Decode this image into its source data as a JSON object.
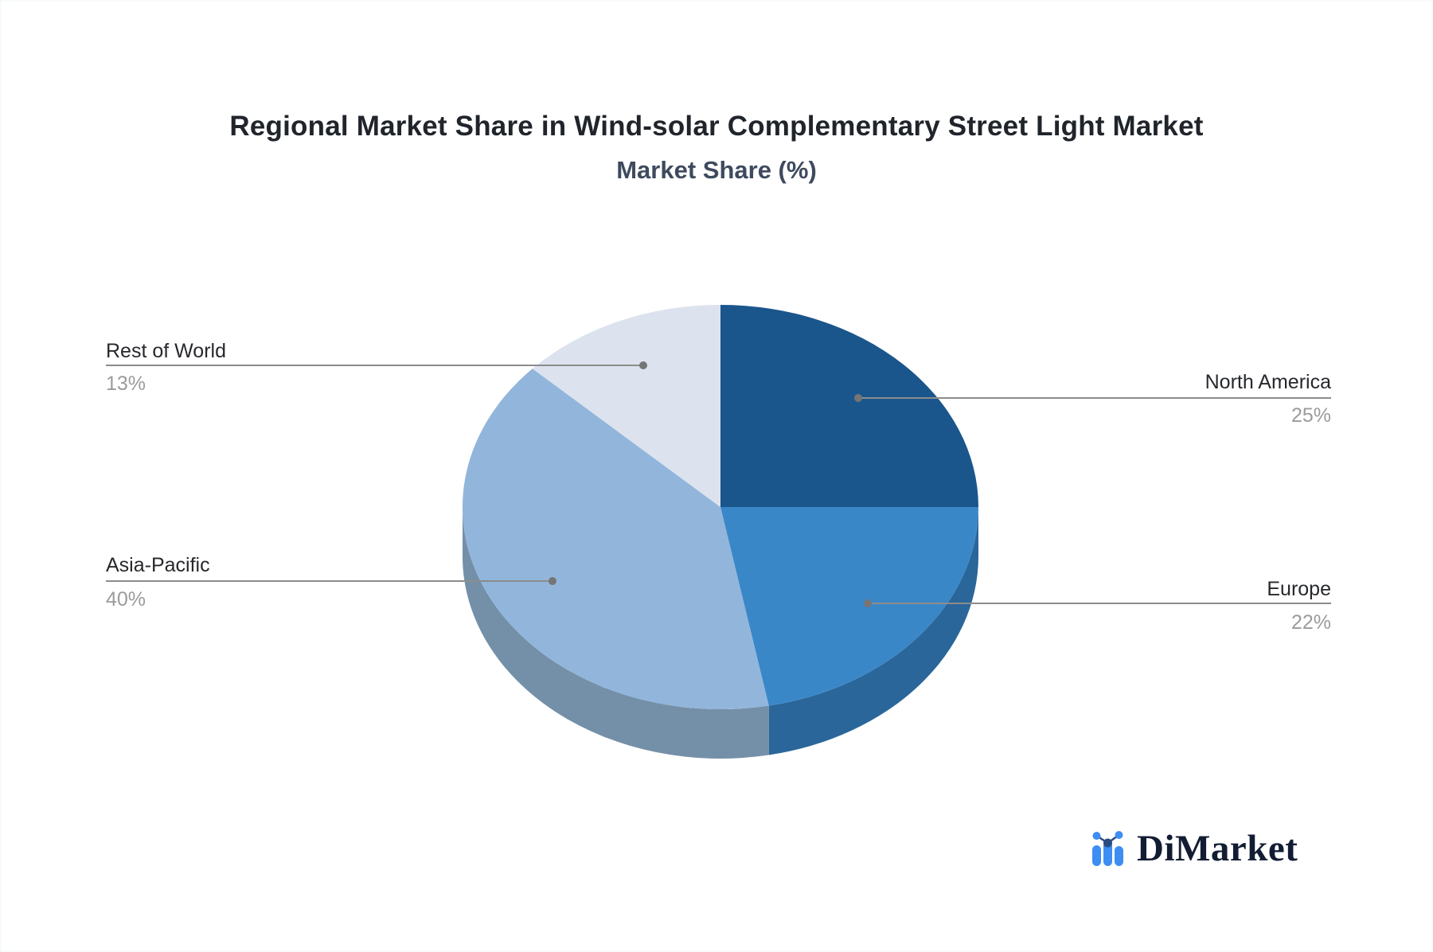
{
  "header": {
    "title": "Regional Market Share in Wind-solar Complementary Street Light Market",
    "subtitle": "Market Share (%)"
  },
  "chart_data": {
    "type": "pie",
    "style": "pie-3d",
    "title": "Regional Market Share in Wind-solar Complementary Street Light Market",
    "subtitle": "Market Share (%)",
    "unit": "%",
    "categories": [
      "North America",
      "Europe",
      "Asia-Pacific",
      "Rest of World"
    ],
    "values": [
      25,
      22,
      40,
      13
    ],
    "value_labels": [
      "25%",
      "22%",
      "40%",
      "13%"
    ],
    "colors": [
      "#1A568C",
      "#3A87C8",
      "#92B5DB",
      "#DCE3EE"
    ],
    "rim_colors": [
      "#164A7D",
      "#2A6699",
      "#7490A8",
      "#B9C4D4"
    ],
    "start_angle_deg": 0,
    "clockwise": true,
    "legend": "none",
    "label_layout": "callouts-left-right",
    "leader_line_color": "#8C8C8C",
    "leader_dot_color": "#757575",
    "label_name_color": "#26282C",
    "label_value_color": "#9B9B9B"
  },
  "branding": {
    "logo_text": "DiMarket",
    "logo_icon": "bar-line-chart-icon",
    "icon_blue": "#3E8DF3",
    "icon_navy": "#2B4B7E",
    "text_color": "#121C33"
  }
}
